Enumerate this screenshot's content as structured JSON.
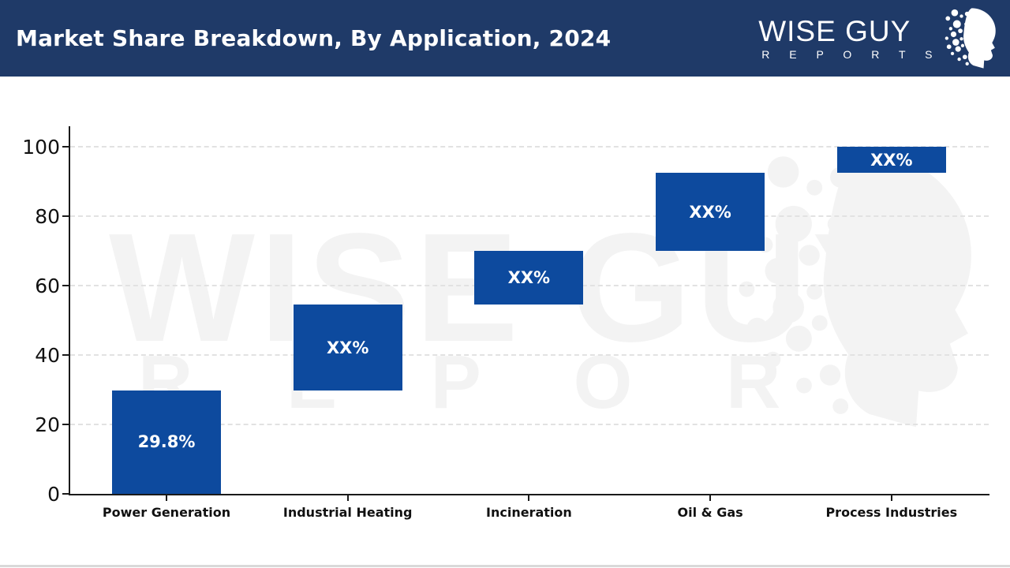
{
  "header": {
    "title": "Market Share Breakdown, By Application, 2024",
    "logo": {
      "line1": "WISE GUY",
      "line2": "REPORTS"
    }
  },
  "watermark": {
    "line1": "WISE GUY",
    "line2": "REPORTS"
  },
  "colors": {
    "header_bg": "#1f3a68",
    "bar": "#0d4a9e",
    "bar_label": "#ffffff",
    "gridline": "#e2e2e2",
    "axis": "#1a1a1a",
    "watermark": "#f3f3f3"
  },
  "chart_data": {
    "type": "bar",
    "subtype": "waterfall",
    "title": "Market Share Breakdown, By Application, 2024",
    "categories": [
      "Power Generation",
      "Industrial Heating",
      "Incineration",
      "Oil & Gas",
      "Process Industries"
    ],
    "segments": [
      {
        "category": "Power Generation",
        "start": 0,
        "end": 29.8,
        "label": "29.8%"
      },
      {
        "category": "Industrial Heating",
        "start": 29.8,
        "end": 54.5,
        "label": "XX%"
      },
      {
        "category": "Incineration",
        "start": 54.5,
        "end": 70.0,
        "label": "XX%"
      },
      {
        "category": "Oil & Gas",
        "start": 70.0,
        "end": 92.5,
        "label": "XX%"
      },
      {
        "category": "Process Industries",
        "start": 92.5,
        "end": 100.0,
        "label": "XX%"
      }
    ],
    "yticks": [
      0,
      20,
      40,
      60,
      80,
      100
    ],
    "ylim": [
      0,
      105
    ],
    "xlabel": "",
    "ylabel": "",
    "grid": true,
    "gridline_style": "dashed",
    "legend": "none",
    "value_labels_inside_bars": true
  }
}
